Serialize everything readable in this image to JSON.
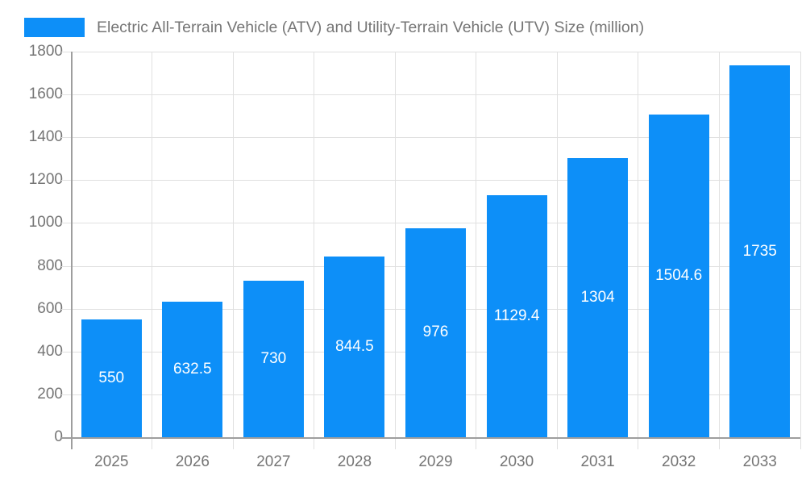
{
  "legend": {
    "label": "Electric All-Terrain Vehicle (ATV) and Utility-Terrain Vehicle (UTV) Size (million)"
  },
  "chart_data": {
    "type": "bar",
    "title": "Electric All-Terrain Vehicle (ATV) and Utility-Terrain Vehicle (UTV) Size (million)",
    "categories": [
      "2025",
      "2026",
      "2027",
      "2028",
      "2029",
      "2030",
      "2031",
      "2032",
      "2033"
    ],
    "values": [
      550,
      632.5,
      730,
      844.5,
      976,
      1129.4,
      1304,
      1504.6,
      1735
    ],
    "value_labels": [
      "550",
      "632.5",
      "730",
      "844.5",
      "976",
      "1129.4",
      "1304",
      "1504.6",
      "1735"
    ],
    "xlabel": "",
    "ylabel": "",
    "ylim": [
      0,
      1800
    ],
    "yticks": [
      0,
      200,
      400,
      600,
      800,
      1000,
      1200,
      1400,
      1600,
      1800
    ],
    "grid": true,
    "legend_position": "top-left",
    "series_name": "Electric All-Terrain Vehicle (ATV) and Utility-Terrain Vehicle (UTV) Size (million)",
    "colors": {
      "bar": "#0d8ff8",
      "axis": "#9e9e9e",
      "gridline": "#e0e0e0",
      "tick_text": "#757575",
      "title_text": "#757575",
      "bar_label_text": "#ffffff",
      "background": "#ffffff"
    }
  }
}
